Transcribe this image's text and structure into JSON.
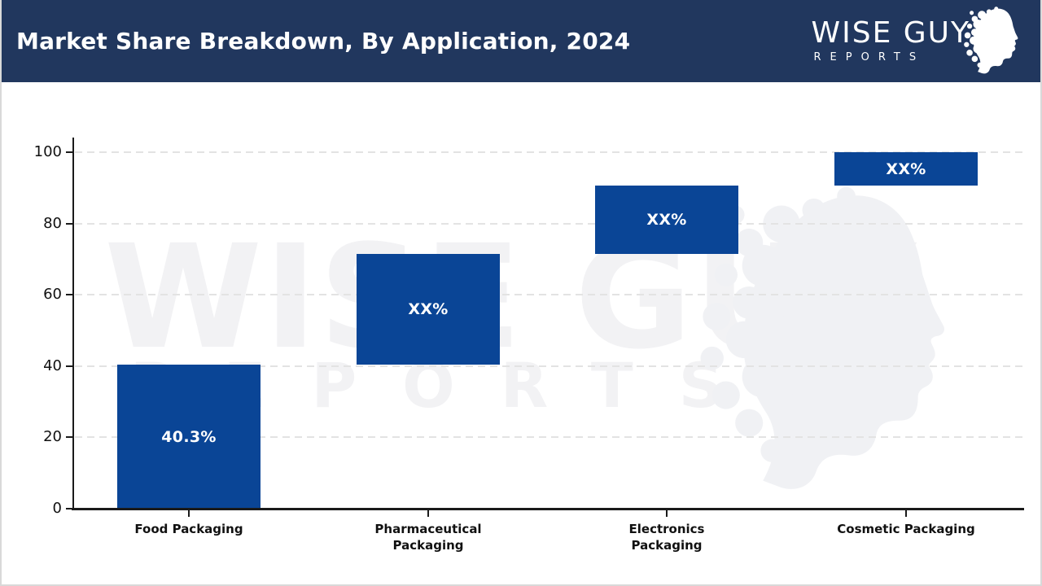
{
  "header": {
    "title": "Market Share Breakdown, By Application, 2024",
    "brand": {
      "name": "WISE GUY",
      "sub": "REPORTS"
    }
  },
  "watermark": {
    "word": "WISE GUY",
    "sub": "REPORTS"
  },
  "colors": {
    "header_bg": "#21375e",
    "bar": "#0a4596",
    "grid": "#e3e3e3",
    "axis": "#1a1a1a",
    "bar_label": "#ffffff",
    "watermark": "#f2f2f4",
    "border": "#d9d9d9"
  },
  "chart_data": {
    "type": "bar",
    "subtype": "floating-segment (waterfall-style market share breakdown)",
    "title": "Market Share Breakdown, By Application, 2024",
    "categories": [
      "Food Packaging",
      "Pharmaceutical Packaging",
      "Electronics Packaging",
      "Cosmetic Packaging"
    ],
    "categories_display": [
      "Food Packaging",
      "Pharmaceutical\nPackaging",
      "Electronics\nPackaging",
      "Cosmetic Packaging"
    ],
    "segments": [
      {
        "category": "Food Packaging",
        "start": 0,
        "end": 40.3,
        "label": "40.3%",
        "masked": false
      },
      {
        "category": "Pharmaceutical Packaging",
        "start": 40.3,
        "end": 71.4,
        "label": "XX%",
        "masked": true
      },
      {
        "category": "Electronics Packaging",
        "start": 71.4,
        "end": 90.6,
        "label": "XX%",
        "masked": true
      },
      {
        "category": "Cosmetic Packaging",
        "start": 90.6,
        "end": 100,
        "label": "XX%",
        "masked": true
      }
    ],
    "xlabel": "",
    "ylabel": "",
    "ylim": [
      0,
      100
    ],
    "yticks": [
      0,
      20,
      40,
      60,
      80,
      100
    ],
    "grid": "horizontal dashed",
    "legend": "none"
  }
}
